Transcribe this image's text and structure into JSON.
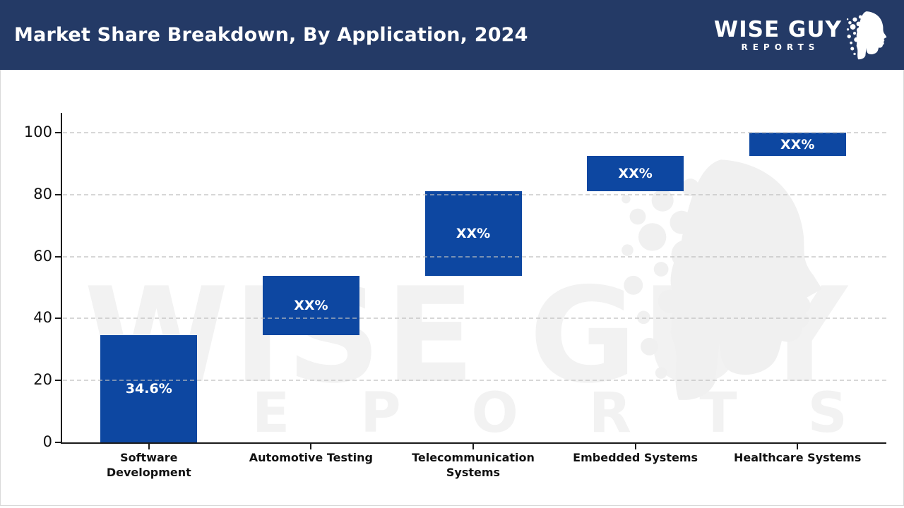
{
  "header": {
    "title": "Market Share Breakdown, By Application, 2024",
    "logo": {
      "line1": "WISE GUY",
      "line2": "REPORTS"
    }
  },
  "watermark": {
    "line1": "WISE GUY",
    "line2": "REPORTS"
  },
  "chart_data": {
    "type": "bar",
    "subtype": "waterfall",
    "title": "Market Share Breakdown, By Application, 2024",
    "categories": [
      "Software Development",
      "Automotive Testing",
      "Telecommunication Systems",
      "Embedded Systems",
      "Healthcare Systems"
    ],
    "category_lines": [
      [
        "Software",
        "Development"
      ],
      [
        "Automotive Testing"
      ],
      [
        "Telecommunication",
        "Systems"
      ],
      [
        "Embedded Systems"
      ],
      [
        "Healthcare Systems"
      ]
    ],
    "segments": [
      {
        "category": "Software Development",
        "start": 0,
        "end": 34.6,
        "label": "34.6%"
      },
      {
        "category": "Automotive Testing",
        "start": 34.6,
        "end": 53.8,
        "label": "XX%"
      },
      {
        "category": "Telecommunication Systems",
        "start": 53.8,
        "end": 81.2,
        "label": "XX%"
      },
      {
        "category": "Embedded Systems",
        "start": 81.2,
        "end": 92.4,
        "label": "XX%"
      },
      {
        "category": "Healthcare Systems",
        "start": 92.4,
        "end": 100,
        "label": "XX%"
      }
    ],
    "xlabel": "",
    "ylabel": "",
    "yticks": [
      0,
      20,
      40,
      60,
      80,
      100
    ],
    "ylim": [
      0,
      106
    ],
    "grid": "horizontal-dashed",
    "legend": "none",
    "bar_color": "#0d47a1",
    "bar_label_color": "#ffffff"
  },
  "colors": {
    "header_bg": "#243a66",
    "bar": "#0d47a1",
    "axis": "#1a1a1a",
    "grid": "#d9d9d9",
    "watermark": "#f2f2f2"
  }
}
